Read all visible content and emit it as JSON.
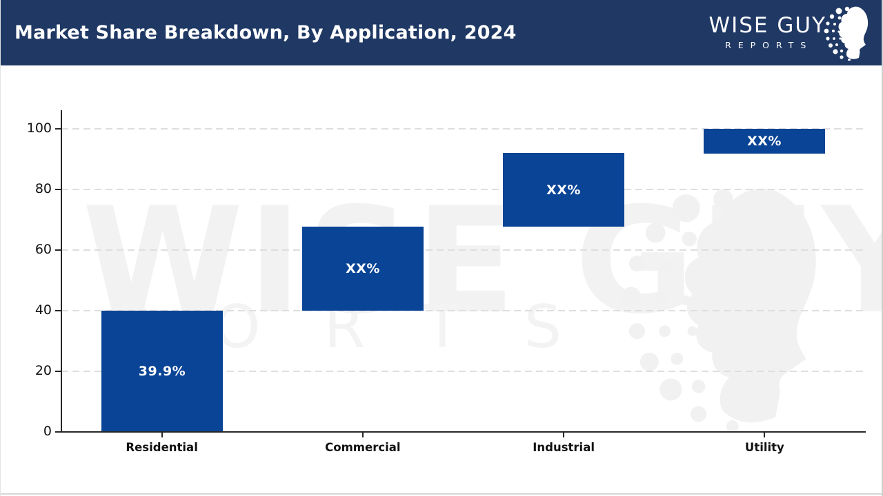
{
  "header": {
    "title": "Market Share Breakdown, By Application, 2024",
    "bg_color": "#1f3864",
    "logo": {
      "line1": "WISE GUY",
      "line2": "REPORTS"
    }
  },
  "watermark": {
    "line1": "WISE GUY",
    "line2": "PORTS"
  },
  "chart_data": {
    "type": "bar",
    "subtype": "waterfall",
    "title": "Market Share Breakdown, By Application, 2024",
    "xlabel": "",
    "ylabel": "",
    "categories": [
      "Residential",
      "Commercial",
      "Industrial",
      "Utility"
    ],
    "segments": [
      {
        "category": "Residential",
        "start": 0,
        "end": 39.9,
        "label": "39.9%"
      },
      {
        "category": "Commercial",
        "start": 39.9,
        "end": 67.6,
        "label": "XX%"
      },
      {
        "category": "Industrial",
        "start": 67.6,
        "end": 91.9,
        "label": "XX%"
      },
      {
        "category": "Utility",
        "start": 91.9,
        "end": 100,
        "label": "XX%"
      }
    ],
    "ylim": [
      0,
      106
    ],
    "yticks": [
      0,
      20,
      40,
      60,
      80,
      100
    ],
    "grid": "horizontal-dashed",
    "legend": "none",
    "bar_color": "#0a4496",
    "bar_label_color": "#ffffff",
    "axis_color": "#262626",
    "gridline_color": "#dedede"
  }
}
